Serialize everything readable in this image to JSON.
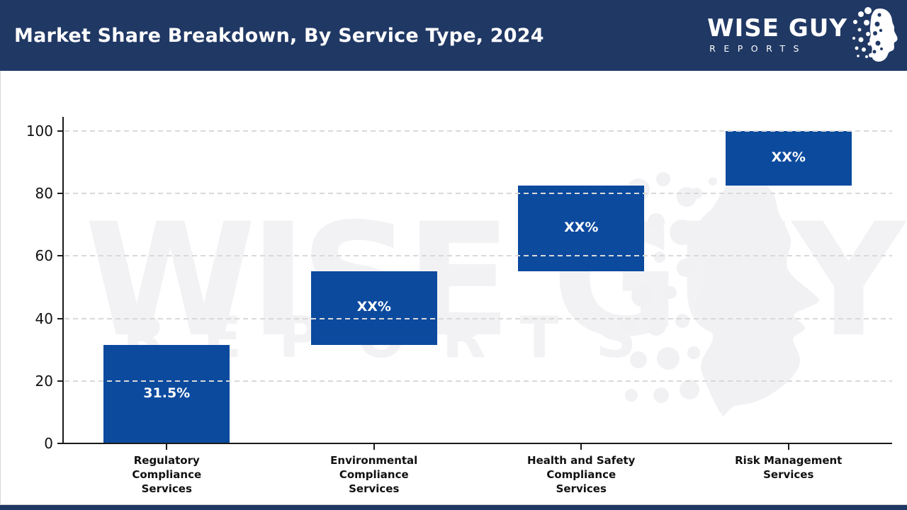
{
  "header": {
    "title": "Market Share Breakdown, By Service Type, 2024",
    "logo": {
      "line1": "WISE GUY",
      "line2": "REPORTS"
    }
  },
  "watermark": {
    "line1": "WISE GUY",
    "line2": "REPORTS"
  },
  "chart_data": {
    "type": "bar",
    "subtype": "floating-segment-waterfall",
    "title": "Market Share Breakdown, By Service Type, 2024",
    "categories": [
      "Regulatory\nCompliance\nServices",
      "Environmental\nCompliance\nServices",
      "Health and Safety\nCompliance\nServices",
      "Risk Management\nServices"
    ],
    "bars": [
      {
        "start": 0,
        "end": 31.5,
        "value": 31.5,
        "label": "31.5%"
      },
      {
        "start": 31.5,
        "end": 55,
        "value": 23.5,
        "label": "XX%"
      },
      {
        "start": 55,
        "end": 82.5,
        "value": 27.5,
        "label": "XX%"
      },
      {
        "start": 82.5,
        "end": 100,
        "value": 17.5,
        "label": "XX%"
      }
    ],
    "y_ticks": [
      0,
      20,
      40,
      60,
      80,
      100
    ],
    "ylim": [
      0,
      105
    ],
    "xlabel": "",
    "ylabel": "",
    "grid": "horizontal-dashed",
    "legend": "none",
    "bar_color": "#0c4a9e",
    "bar_label_color": "#ffffff"
  },
  "colors": {
    "header_bg": "#203864",
    "footer_bg": "#203864",
    "bar": "#0c4a9e",
    "grid": "#d9d9d9",
    "axis": "#1a1a1a",
    "watermark": "#f2f2f4"
  }
}
